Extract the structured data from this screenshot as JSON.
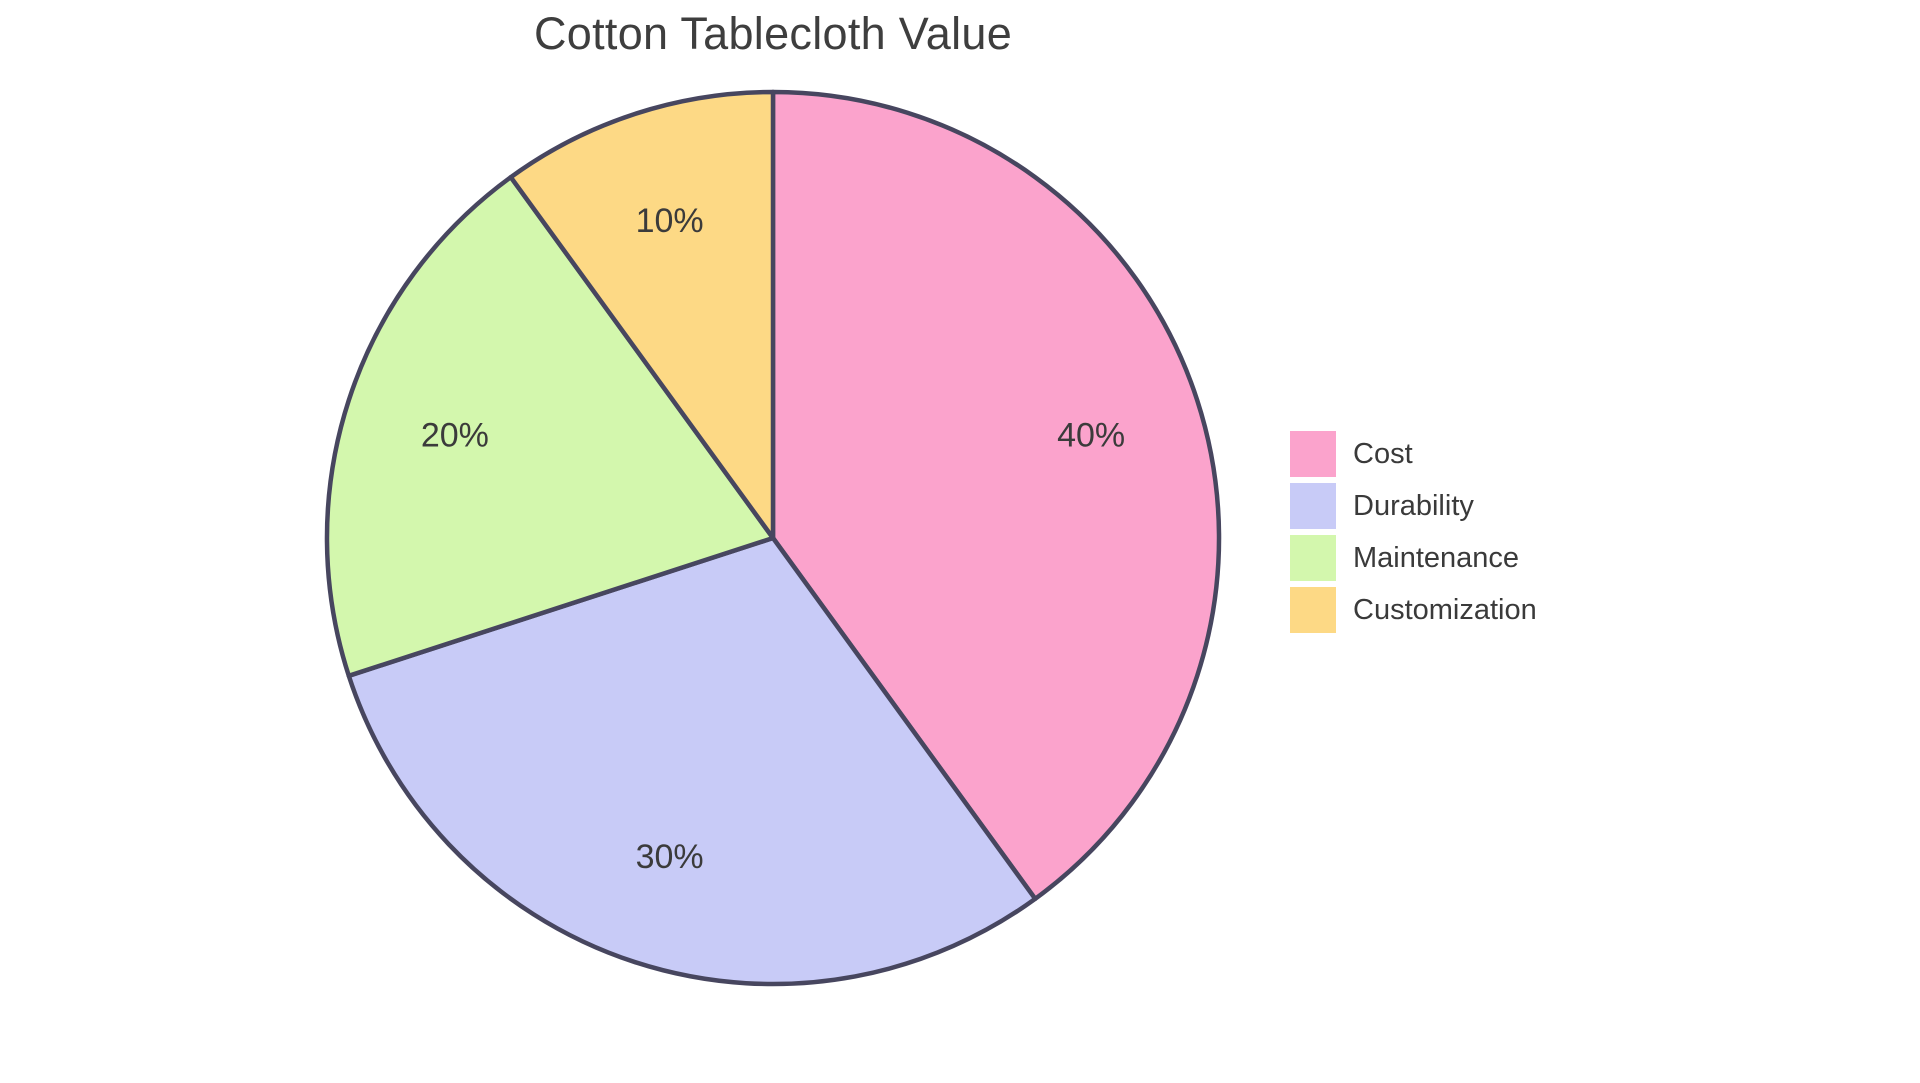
{
  "chart_data": {
    "type": "pie",
    "title": "Cotton Tablecloth Value",
    "categories": [
      "Cost",
      "Durability",
      "Maintenance",
      "Customization"
    ],
    "values": [
      40,
      30,
      20,
      10
    ],
    "slice_labels": [
      "40%",
      "30%",
      "20%",
      "10%"
    ],
    "colors": [
      "#FBA3CC",
      "#C8CBF7",
      "#D3F7AD",
      "#FDD985"
    ],
    "slice_border_color": "#47465F",
    "label_color": "#3B3B3B",
    "title_color": "#3E3E3E",
    "total": 100,
    "start_angle_deg": 0,
    "direction": "clockwise",
    "legend": {
      "position": "right",
      "items": [
        "Cost",
        "Durability",
        "Maintenance",
        "Customization"
      ]
    }
  }
}
